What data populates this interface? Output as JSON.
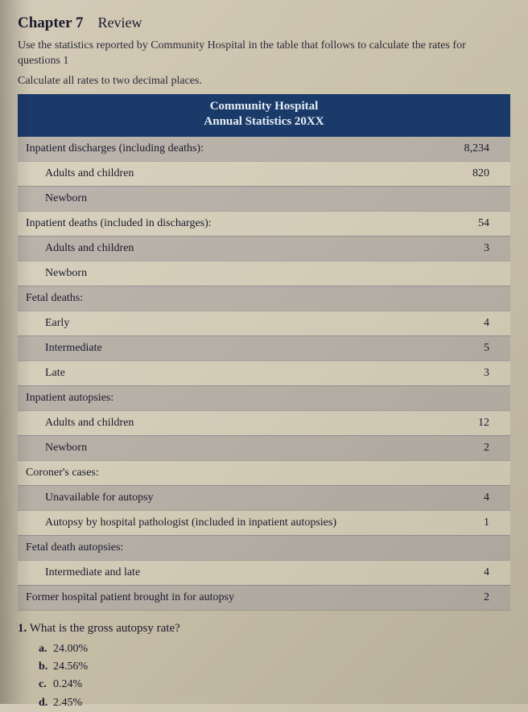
{
  "chapter": {
    "label": "Chapter 7",
    "review": "Review"
  },
  "intro_line1": "Use the statistics reported by Community Hospital in the table that follows to calculate the rates for questions 1",
  "intro_line2": "Calculate all rates to two decimal places.",
  "table": {
    "header_line1": "Community Hospital",
    "header_line2": "Annual Statistics 20XX",
    "rows": [
      {
        "label": "Inpatient discharges (including deaths):",
        "value": "8,234",
        "shaded": true,
        "indent": 0
      },
      {
        "label": "Adults and children",
        "value": "820",
        "shaded": false,
        "indent": 1
      },
      {
        "label": "Newborn",
        "value": "",
        "shaded": true,
        "indent": 1
      },
      {
        "label": "Inpatient deaths (included in discharges):",
        "value": "54",
        "shaded": false,
        "indent": 0
      },
      {
        "label": "Adults and children",
        "value": "3",
        "shaded": true,
        "indent": 1
      },
      {
        "label": "Newborn",
        "value": "",
        "shaded": false,
        "indent": 1
      },
      {
        "label": "Fetal deaths:",
        "value": "",
        "shaded": true,
        "indent": 0
      },
      {
        "label": "Early",
        "value": "4",
        "shaded": false,
        "indent": 1
      },
      {
        "label": "Intermediate",
        "value": "5",
        "shaded": true,
        "indent": 1
      },
      {
        "label": "Late",
        "value": "3",
        "shaded": false,
        "indent": 1
      },
      {
        "label": "Inpatient autopsies:",
        "value": "",
        "shaded": true,
        "indent": 0
      },
      {
        "label": "Adults and children",
        "value": "12",
        "shaded": false,
        "indent": 1
      },
      {
        "label": "Newborn",
        "value": "2",
        "shaded": true,
        "indent": 1
      },
      {
        "label": "Coroner's cases:",
        "value": "",
        "shaded": false,
        "indent": 0
      },
      {
        "label": "Unavailable for autopsy",
        "value": "4",
        "shaded": true,
        "indent": 1
      },
      {
        "label": "Autopsy by hospital pathologist (included in inpatient autopsies)",
        "value": "1",
        "shaded": false,
        "indent": 1
      },
      {
        "label": "Fetal death autopsies:",
        "value": "",
        "shaded": true,
        "indent": 0
      },
      {
        "label": "Intermediate and late",
        "value": "4",
        "shaded": false,
        "indent": 1
      },
      {
        "label": "Former hospital patient brought in for autopsy",
        "value": "2",
        "shaded": true,
        "indent": 0
      }
    ]
  },
  "question": {
    "number": "1.",
    "stem": "What is the gross autopsy rate?",
    "options": [
      {
        "letter": "a.",
        "text": "24.00%"
      },
      {
        "letter": "b.",
        "text": "24.56%"
      },
      {
        "letter": "c.",
        "text": "0.24%"
      },
      {
        "letter": "d.",
        "text": "2.45%"
      }
    ]
  }
}
